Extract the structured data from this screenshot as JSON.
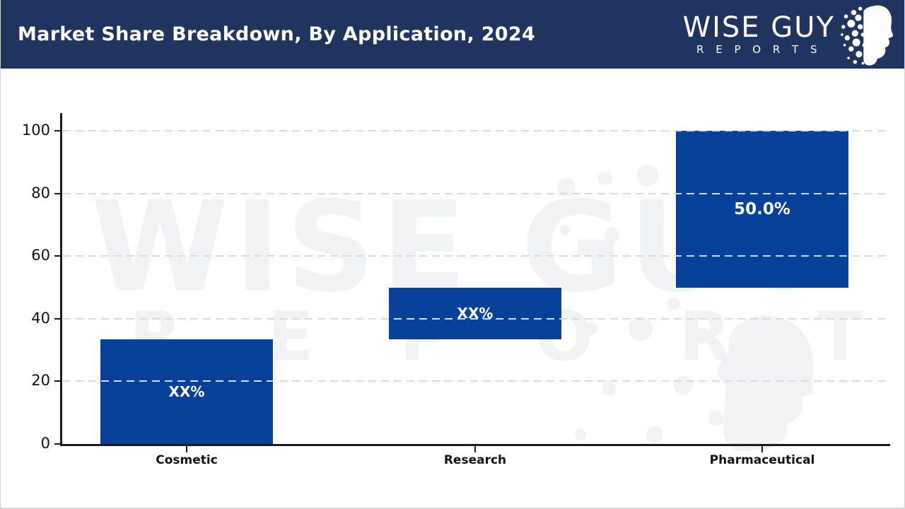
{
  "header": {
    "title": "Market Share Breakdown, By Application, 2024",
    "logo": {
      "line1": "WISE GUY",
      "line2": "R E P O R T S"
    }
  },
  "watermark": {
    "line1": "WISE GUY",
    "line2": "R E P O R T S"
  },
  "colors": {
    "header_bg": "#1F345F",
    "bar": "#07419A",
    "grid": "#D8DBE0",
    "watermark": "#F2F3F5",
    "bar_label": "#FFFFFF"
  },
  "chart_data": {
    "type": "bar",
    "variant": "floating-segment breakdown (stacked waterfall of market share)",
    "title": "Market Share Breakdown, By Application, 2024",
    "categories": [
      "Cosmetic",
      "Research",
      "Pharmaceutical"
    ],
    "segments": [
      {
        "category": "Cosmetic",
        "from": 0,
        "to": 33.3,
        "value_label": "XX%",
        "label_size": 20
      },
      {
        "category": "Research",
        "from": 33.3,
        "to": 50.0,
        "value_label": "XX%",
        "label_size": 20
      },
      {
        "category": "Pharmaceutical",
        "from": 50.0,
        "to": 100.0,
        "value_label": "50.0%",
        "label_size": 23
      }
    ],
    "xlabel": "",
    "ylabel": "",
    "ylim": [
      0,
      100
    ],
    "yticks": [
      0,
      20,
      40,
      60,
      80,
      100
    ],
    "grid": "horizontal dashed",
    "legend": "none"
  }
}
